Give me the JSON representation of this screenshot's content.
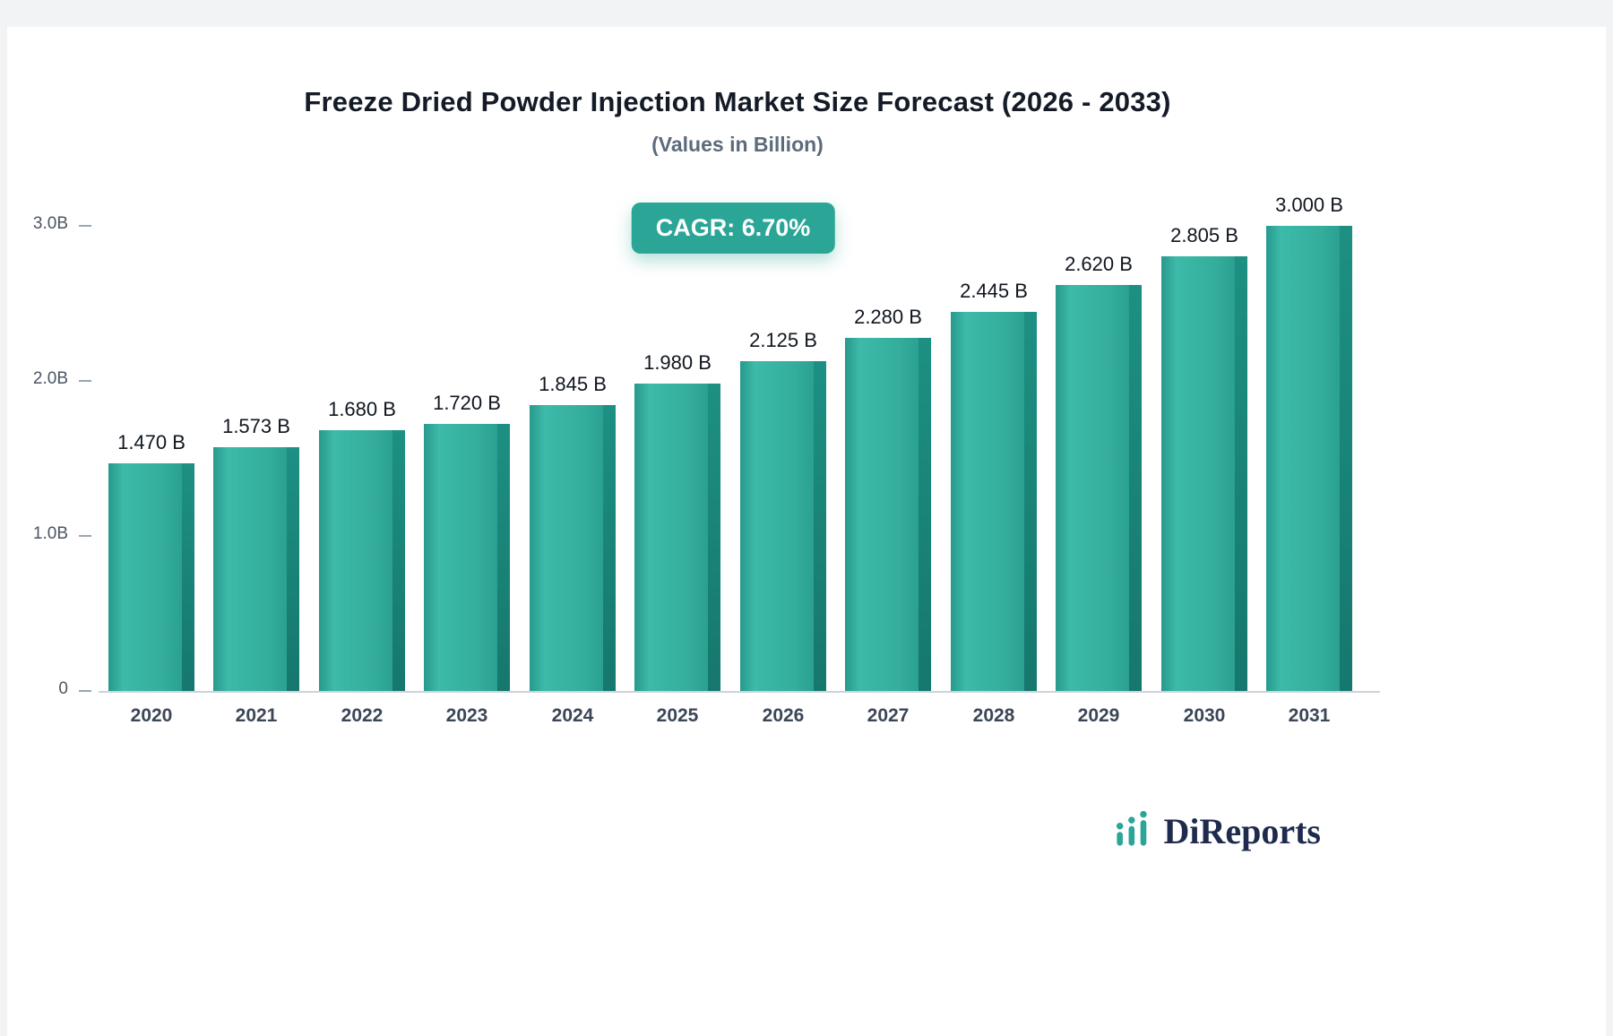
{
  "page": {
    "title": "Freeze Dried Powder Injection Market Size Forecast (2026 - 2033)",
    "subtitle": "(Values in Billion)",
    "cagr_badge": "CAGR: 6.70%"
  },
  "brand": {
    "name": "DiReports",
    "icon": "bar-chart-icon"
  },
  "colors": {
    "teal_accent": "#2AA596",
    "bar_face_light": "#3DBAA9",
    "bar_side_dark": "#16776D",
    "title_text": "#141B27",
    "subtitle_text": "#5C6B7C",
    "axis_text": "#4B5563",
    "brand_text": "#1E2B4D"
  },
  "chart_data": {
    "type": "bar",
    "title": "Freeze Dried Powder Injection Market Size Forecast (2026 - 2033)",
    "subtitle": "(Values in Billion)",
    "categories": [
      "2020",
      "2021",
      "2022",
      "2023",
      "2024",
      "2025",
      "2026",
      "2027",
      "2028",
      "2029",
      "2030",
      "2031"
    ],
    "values": [
      1.47,
      1.573,
      1.68,
      1.72,
      1.845,
      1.98,
      2.125,
      2.28,
      2.445,
      2.62,
      2.805,
      3.0
    ],
    "value_labels": [
      "1.470 B",
      "1.573 B",
      "1.680 B",
      "1.720 B",
      "1.845 B",
      "1.980 B",
      "2.125 B",
      "2.280 B",
      "2.445 B",
      "2.620 B",
      "2.805 B",
      "3.000 B"
    ],
    "xlabel": "",
    "ylabel": "",
    "ylim": [
      0,
      3.0
    ],
    "yticks": [
      {
        "value": 0,
        "label": "0"
      },
      {
        "value": 1.0,
        "label": "1.0B"
      },
      {
        "value": 2.0,
        "label": "2.0B"
      },
      {
        "value": 3.0,
        "label": "3.0B"
      }
    ],
    "grid": false,
    "legend": false,
    "annotation": "CAGR: 6.70%"
  }
}
